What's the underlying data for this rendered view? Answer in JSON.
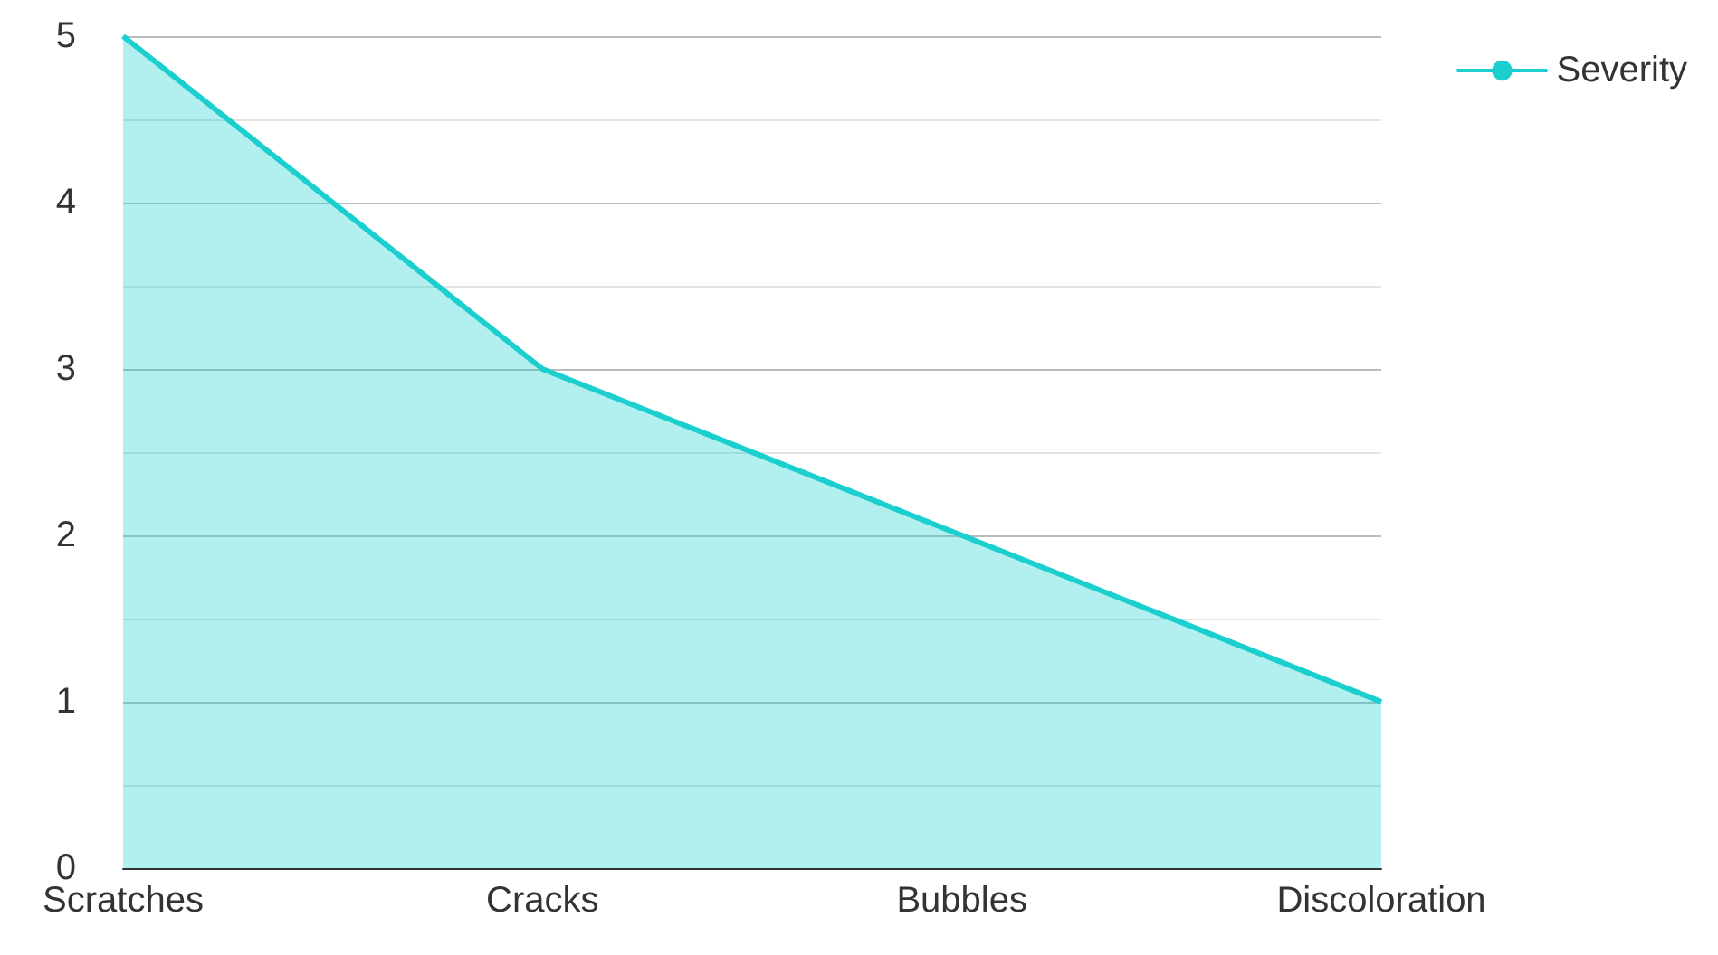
{
  "chart_data": {
    "type": "area",
    "categories": [
      "Scratches",
      "Cracks",
      "Bubbles",
      "Discoloration"
    ],
    "series": [
      {
        "name": "Severity",
        "color": "#1ccfcf",
        "values": [
          5,
          3,
          2,
          1
        ]
      }
    ],
    "ylim": [
      0,
      5
    ],
    "yticks": [
      0,
      1,
      2,
      3,
      4,
      5
    ],
    "grid": "y",
    "legend": "top right"
  }
}
